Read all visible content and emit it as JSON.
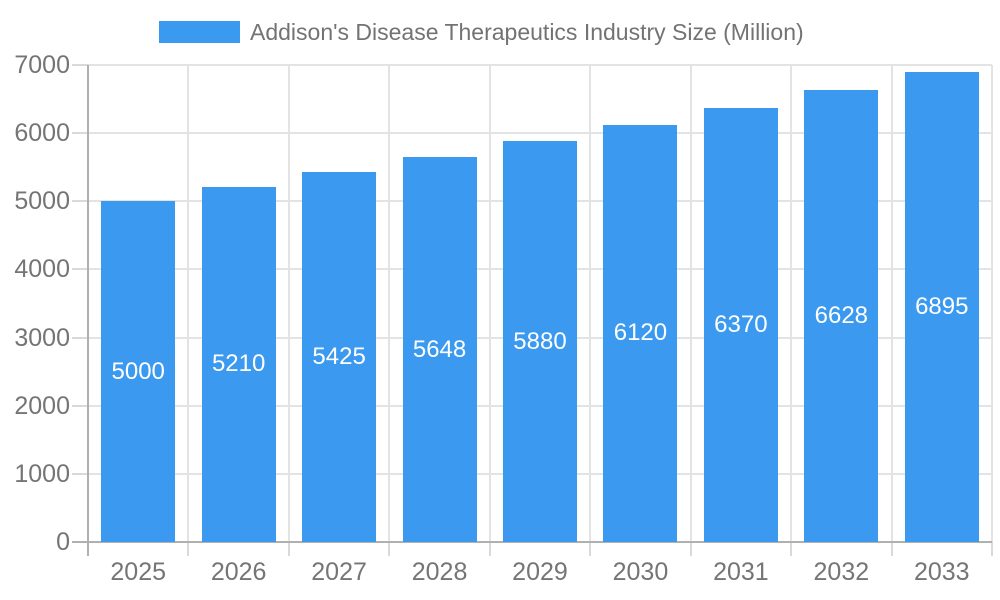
{
  "chart_data": {
    "type": "bar",
    "title": "Addison's Disease Therapeutics Industry Size (Million)",
    "categories": [
      "2025",
      "2026",
      "2027",
      "2028",
      "2029",
      "2030",
      "2031",
      "2032",
      "2033"
    ],
    "values": [
      5000,
      5210,
      5425,
      5648,
      5880,
      6120,
      6370,
      6628,
      6895
    ],
    "ylim": [
      0,
      7000
    ],
    "ytick_step": 1000,
    "yticks": [
      0,
      1000,
      2000,
      3000,
      4000,
      5000,
      6000,
      7000
    ],
    "grid": true,
    "legend_position": "top",
    "colors": {
      "bar": "#3b99ef",
      "bar_value_label": "#ffffff",
      "axis_tick_label": "#757575",
      "title_text": "#737373",
      "gridline": "#e3e3e3",
      "outer_tick": "#d9d9d9",
      "axis_line": "#b0b0b0",
      "background": "#ffffff"
    }
  }
}
